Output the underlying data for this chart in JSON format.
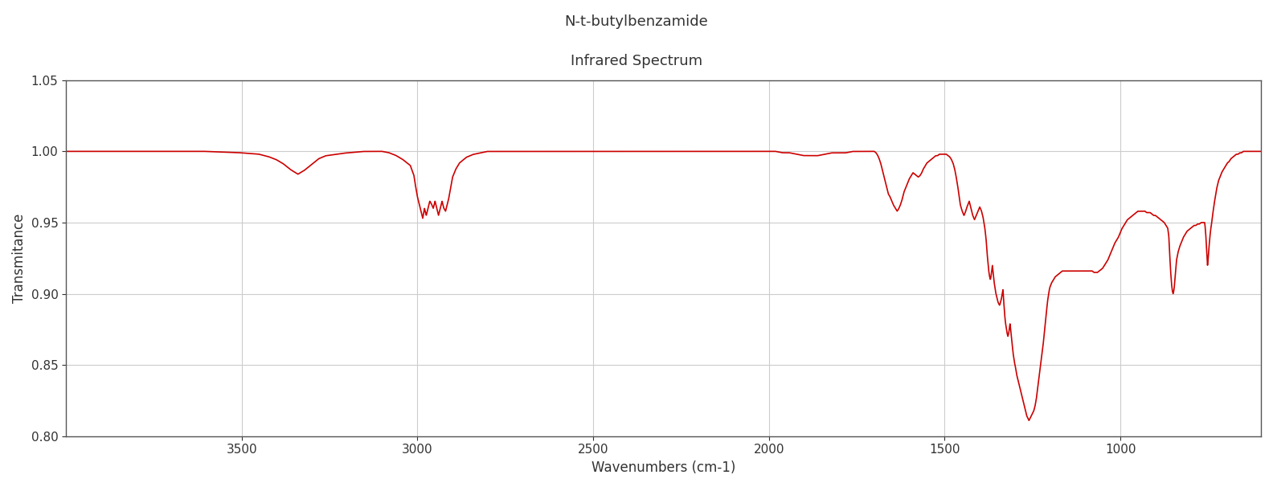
{
  "title": "N-t-butylbenzamide",
  "subtitle": "Infrared Spectrum",
  "xlabel": "Wavenumbers (cm-1)",
  "ylabel": "Transmitance",
  "xlim": [
    4000,
    600
  ],
  "ylim": [
    0.8,
    1.05
  ],
  "xticks": [
    3500,
    3000,
    2500,
    2000,
    1500,
    1000
  ],
  "yticks": [
    0.8,
    0.85,
    0.9,
    0.95,
    1.0,
    1.05
  ],
  "line_color": "#cc0000",
  "background_color": "#ffffff",
  "grid_color": "#cccccc",
  "title_fontsize": 13,
  "subtitle_fontsize": 13,
  "axis_fontsize": 12,
  "tick_fontsize": 11,
  "keypoints": [
    [
      4000,
      1.0
    ],
    [
      3800,
      1.0
    ],
    [
      3600,
      1.0
    ],
    [
      3500,
      0.999
    ],
    [
      3450,
      0.998
    ],
    [
      3420,
      0.996
    ],
    [
      3400,
      0.994
    ],
    [
      3380,
      0.991
    ],
    [
      3360,
      0.987
    ],
    [
      3340,
      0.984
    ],
    [
      3320,
      0.987
    ],
    [
      3300,
      0.991
    ],
    [
      3280,
      0.995
    ],
    [
      3260,
      0.997
    ],
    [
      3200,
      0.999
    ],
    [
      3150,
      1.0
    ],
    [
      3100,
      1.0
    ],
    [
      3080,
      0.999
    ],
    [
      3060,
      0.997
    ],
    [
      3040,
      0.994
    ],
    [
      3020,
      0.99
    ],
    [
      3010,
      0.983
    ],
    [
      3005,
      0.975
    ],
    [
      3000,
      0.968
    ],
    [
      2995,
      0.963
    ],
    [
      2990,
      0.958
    ],
    [
      2985,
      0.953
    ],
    [
      2980,
      0.96
    ],
    [
      2975,
      0.955
    ],
    [
      2970,
      0.96
    ],
    [
      2965,
      0.965
    ],
    [
      2960,
      0.963
    ],
    [
      2955,
      0.96
    ],
    [
      2950,
      0.965
    ],
    [
      2945,
      0.96
    ],
    [
      2940,
      0.955
    ],
    [
      2935,
      0.96
    ],
    [
      2930,
      0.965
    ],
    [
      2925,
      0.96
    ],
    [
      2920,
      0.958
    ],
    [
      2915,
      0.963
    ],
    [
      2910,
      0.968
    ],
    [
      2905,
      0.975
    ],
    [
      2900,
      0.982
    ],
    [
      2890,
      0.988
    ],
    [
      2880,
      0.992
    ],
    [
      2870,
      0.994
    ],
    [
      2860,
      0.996
    ],
    [
      2840,
      0.998
    ],
    [
      2820,
      0.999
    ],
    [
      2800,
      1.0
    ],
    [
      2700,
      1.0
    ],
    [
      2600,
      1.0
    ],
    [
      2500,
      1.0
    ],
    [
      2400,
      1.0
    ],
    [
      2300,
      1.0
    ],
    [
      2200,
      1.0
    ],
    [
      2100,
      1.0
    ],
    [
      2000,
      1.0
    ],
    [
      1980,
      1.0
    ],
    [
      1960,
      0.999
    ],
    [
      1940,
      0.999
    ],
    [
      1920,
      0.998
    ],
    [
      1900,
      0.997
    ],
    [
      1880,
      0.997
    ],
    [
      1860,
      0.997
    ],
    [
      1840,
      0.998
    ],
    [
      1820,
      0.999
    ],
    [
      1800,
      0.999
    ],
    [
      1780,
      0.999
    ],
    [
      1760,
      1.0
    ],
    [
      1740,
      1.0
    ],
    [
      1720,
      1.0
    ],
    [
      1700,
      1.0
    ],
    [
      1695,
      0.999
    ],
    [
      1690,
      0.997
    ],
    [
      1685,
      0.994
    ],
    [
      1680,
      0.99
    ],
    [
      1675,
      0.985
    ],
    [
      1670,
      0.98
    ],
    [
      1665,
      0.975
    ],
    [
      1660,
      0.97
    ],
    [
      1655,
      0.968
    ],
    [
      1650,
      0.965
    ],
    [
      1645,
      0.962
    ],
    [
      1640,
      0.96
    ],
    [
      1635,
      0.958
    ],
    [
      1630,
      0.96
    ],
    [
      1625,
      0.963
    ],
    [
      1620,
      0.967
    ],
    [
      1615,
      0.972
    ],
    [
      1610,
      0.975
    ],
    [
      1605,
      0.978
    ],
    [
      1600,
      0.981
    ],
    [
      1595,
      0.983
    ],
    [
      1590,
      0.985
    ],
    [
      1585,
      0.984
    ],
    [
      1580,
      0.983
    ],
    [
      1575,
      0.982
    ],
    [
      1570,
      0.983
    ],
    [
      1565,
      0.985
    ],
    [
      1560,
      0.988
    ],
    [
      1555,
      0.99
    ],
    [
      1550,
      0.992
    ],
    [
      1545,
      0.993
    ],
    [
      1540,
      0.994
    ],
    [
      1535,
      0.995
    ],
    [
      1530,
      0.996
    ],
    [
      1525,
      0.997
    ],
    [
      1520,
      0.997
    ],
    [
      1515,
      0.998
    ],
    [
      1510,
      0.998
    ],
    [
      1505,
      0.998
    ],
    [
      1500,
      0.998
    ],
    [
      1495,
      0.998
    ],
    [
      1490,
      0.997
    ],
    [
      1485,
      0.996
    ],
    [
      1480,
      0.994
    ],
    [
      1475,
      0.991
    ],
    [
      1470,
      0.986
    ],
    [
      1465,
      0.979
    ],
    [
      1460,
      0.971
    ],
    [
      1455,
      0.962
    ],
    [
      1450,
      0.958
    ],
    [
      1445,
      0.955
    ],
    [
      1440,
      0.958
    ],
    [
      1435,
      0.962
    ],
    [
      1430,
      0.965
    ],
    [
      1425,
      0.96
    ],
    [
      1420,
      0.955
    ],
    [
      1415,
      0.952
    ],
    [
      1410,
      0.955
    ],
    [
      1405,
      0.958
    ],
    [
      1400,
      0.961
    ],
    [
      1395,
      0.958
    ],
    [
      1390,
      0.953
    ],
    [
      1385,
      0.945
    ],
    [
      1382,
      0.938
    ],
    [
      1380,
      0.932
    ],
    [
      1378,
      0.925
    ],
    [
      1376,
      0.92
    ],
    [
      1374,
      0.915
    ],
    [
      1372,
      0.912
    ],
    [
      1370,
      0.91
    ],
    [
      1368,
      0.912
    ],
    [
      1366,
      0.916
    ],
    [
      1364,
      0.92
    ],
    [
      1362,
      0.915
    ],
    [
      1360,
      0.91
    ],
    [
      1358,
      0.906
    ],
    [
      1356,
      0.903
    ],
    [
      1354,
      0.9
    ],
    [
      1352,
      0.898
    ],
    [
      1350,
      0.896
    ],
    [
      1348,
      0.894
    ],
    [
      1346,
      0.893
    ],
    [
      1344,
      0.892
    ],
    [
      1342,
      0.893
    ],
    [
      1340,
      0.895
    ],
    [
      1338,
      0.897
    ],
    [
      1336,
      0.9
    ],
    [
      1334,
      0.903
    ],
    [
      1332,
      0.895
    ],
    [
      1330,
      0.888
    ],
    [
      1328,
      0.882
    ],
    [
      1326,
      0.878
    ],
    [
      1324,
      0.875
    ],
    [
      1322,
      0.872
    ],
    [
      1320,
      0.87
    ],
    [
      1318,
      0.872
    ],
    [
      1316,
      0.875
    ],
    [
      1314,
      0.879
    ],
    [
      1312,
      0.875
    ],
    [
      1310,
      0.87
    ],
    [
      1308,
      0.865
    ],
    [
      1306,
      0.86
    ],
    [
      1304,
      0.856
    ],
    [
      1302,
      0.853
    ],
    [
      1300,
      0.85
    ],
    [
      1298,
      0.848
    ],
    [
      1296,
      0.845
    ],
    [
      1294,
      0.842
    ],
    [
      1292,
      0.84
    ],
    [
      1290,
      0.838
    ],
    [
      1288,
      0.836
    ],
    [
      1286,
      0.834
    ],
    [
      1284,
      0.832
    ],
    [
      1282,
      0.83
    ],
    [
      1280,
      0.828
    ],
    [
      1278,
      0.826
    ],
    [
      1276,
      0.824
    ],
    [
      1274,
      0.822
    ],
    [
      1272,
      0.82
    ],
    [
      1270,
      0.818
    ],
    [
      1268,
      0.816
    ],
    [
      1266,
      0.814
    ],
    [
      1264,
      0.813
    ],
    [
      1262,
      0.812
    ],
    [
      1260,
      0.811
    ],
    [
      1258,
      0.812
    ],
    [
      1256,
      0.813
    ],
    [
      1254,
      0.814
    ],
    [
      1252,
      0.815
    ],
    [
      1250,
      0.816
    ],
    [
      1248,
      0.817
    ],
    [
      1246,
      0.818
    ],
    [
      1244,
      0.82
    ],
    [
      1242,
      0.822
    ],
    [
      1240,
      0.825
    ],
    [
      1238,
      0.828
    ],
    [
      1236,
      0.832
    ],
    [
      1234,
      0.836
    ],
    [
      1232,
      0.84
    ],
    [
      1230,
      0.844
    ],
    [
      1228,
      0.848
    ],
    [
      1226,
      0.852
    ],
    [
      1224,
      0.856
    ],
    [
      1222,
      0.86
    ],
    [
      1220,
      0.864
    ],
    [
      1218,
      0.868
    ],
    [
      1216,
      0.873
    ],
    [
      1214,
      0.878
    ],
    [
      1212,
      0.883
    ],
    [
      1210,
      0.888
    ],
    [
      1208,
      0.893
    ],
    [
      1206,
      0.897
    ],
    [
      1204,
      0.9
    ],
    [
      1202,
      0.903
    ],
    [
      1200,
      0.905
    ],
    [
      1195,
      0.908
    ],
    [
      1190,
      0.91
    ],
    [
      1185,
      0.912
    ],
    [
      1180,
      0.913
    ],
    [
      1175,
      0.914
    ],
    [
      1170,
      0.915
    ],
    [
      1165,
      0.916
    ],
    [
      1160,
      0.916
    ],
    [
      1155,
      0.916
    ],
    [
      1150,
      0.916
    ],
    [
      1145,
      0.916
    ],
    [
      1140,
      0.916
    ],
    [
      1135,
      0.916
    ],
    [
      1130,
      0.916
    ],
    [
      1125,
      0.916
    ],
    [
      1120,
      0.916
    ],
    [
      1115,
      0.916
    ],
    [
      1110,
      0.916
    ],
    [
      1105,
      0.916
    ],
    [
      1100,
      0.916
    ],
    [
      1095,
      0.916
    ],
    [
      1090,
      0.916
    ],
    [
      1085,
      0.916
    ],
    [
      1080,
      0.916
    ],
    [
      1075,
      0.915
    ],
    [
      1070,
      0.915
    ],
    [
      1065,
      0.915
    ],
    [
      1060,
      0.916
    ],
    [
      1055,
      0.917
    ],
    [
      1050,
      0.918
    ],
    [
      1045,
      0.92
    ],
    [
      1040,
      0.922
    ],
    [
      1035,
      0.924
    ],
    [
      1030,
      0.927
    ],
    [
      1025,
      0.93
    ],
    [
      1020,
      0.933
    ],
    [
      1015,
      0.936
    ],
    [
      1010,
      0.938
    ],
    [
      1005,
      0.94
    ],
    [
      1000,
      0.943
    ],
    [
      995,
      0.946
    ],
    [
      990,
      0.948
    ],
    [
      985,
      0.95
    ],
    [
      980,
      0.952
    ],
    [
      975,
      0.953
    ],
    [
      970,
      0.954
    ],
    [
      965,
      0.955
    ],
    [
      960,
      0.956
    ],
    [
      955,
      0.957
    ],
    [
      950,
      0.958
    ],
    [
      945,
      0.958
    ],
    [
      940,
      0.958
    ],
    [
      935,
      0.958
    ],
    [
      930,
      0.958
    ],
    [
      925,
      0.957
    ],
    [
      920,
      0.957
    ],
    [
      915,
      0.957
    ],
    [
      910,
      0.956
    ],
    [
      905,
      0.955
    ],
    [
      900,
      0.955
    ],
    [
      895,
      0.954
    ],
    [
      890,
      0.953
    ],
    [
      885,
      0.952
    ],
    [
      880,
      0.951
    ],
    [
      875,
      0.95
    ],
    [
      870,
      0.948
    ],
    [
      865,
      0.946
    ],
    [
      862,
      0.94
    ],
    [
      860,
      0.93
    ],
    [
      858,
      0.92
    ],
    [
      856,
      0.912
    ],
    [
      854,
      0.906
    ],
    [
      852,
      0.902
    ],
    [
      850,
      0.9
    ],
    [
      848,
      0.902
    ],
    [
      846,
      0.906
    ],
    [
      844,
      0.912
    ],
    [
      842,
      0.918
    ],
    [
      840,
      0.924
    ],
    [
      835,
      0.93
    ],
    [
      830,
      0.934
    ],
    [
      825,
      0.937
    ],
    [
      820,
      0.94
    ],
    [
      815,
      0.942
    ],
    [
      810,
      0.944
    ],
    [
      805,
      0.945
    ],
    [
      800,
      0.946
    ],
    [
      795,
      0.947
    ],
    [
      790,
      0.948
    ],
    [
      785,
      0.948
    ],
    [
      780,
      0.949
    ],
    [
      775,
      0.949
    ],
    [
      770,
      0.95
    ],
    [
      765,
      0.95
    ],
    [
      760,
      0.95
    ],
    [
      758,
      0.945
    ],
    [
      756,
      0.938
    ],
    [
      754,
      0.928
    ],
    [
      752,
      0.92
    ],
    [
      750,
      0.925
    ],
    [
      748,
      0.932
    ],
    [
      746,
      0.938
    ],
    [
      744,
      0.943
    ],
    [
      742,
      0.947
    ],
    [
      740,
      0.95
    ],
    [
      735,
      0.96
    ],
    [
      730,
      0.968
    ],
    [
      725,
      0.975
    ],
    [
      720,
      0.98
    ],
    [
      715,
      0.983
    ],
    [
      710,
      0.986
    ],
    [
      705,
      0.988
    ],
    [
      700,
      0.99
    ],
    [
      695,
      0.992
    ],
    [
      690,
      0.993
    ],
    [
      685,
      0.995
    ],
    [
      680,
      0.996
    ],
    [
      675,
      0.997
    ],
    [
      670,
      0.998
    ],
    [
      665,
      0.998
    ],
    [
      660,
      0.999
    ],
    [
      655,
      0.999
    ],
    [
      650,
      1.0
    ],
    [
      645,
      1.0
    ],
    [
      640,
      1.0
    ],
    [
      630,
      1.0
    ],
    [
      620,
      1.0
    ],
    [
      610,
      1.0
    ],
    [
      600,
      1.0
    ]
  ]
}
